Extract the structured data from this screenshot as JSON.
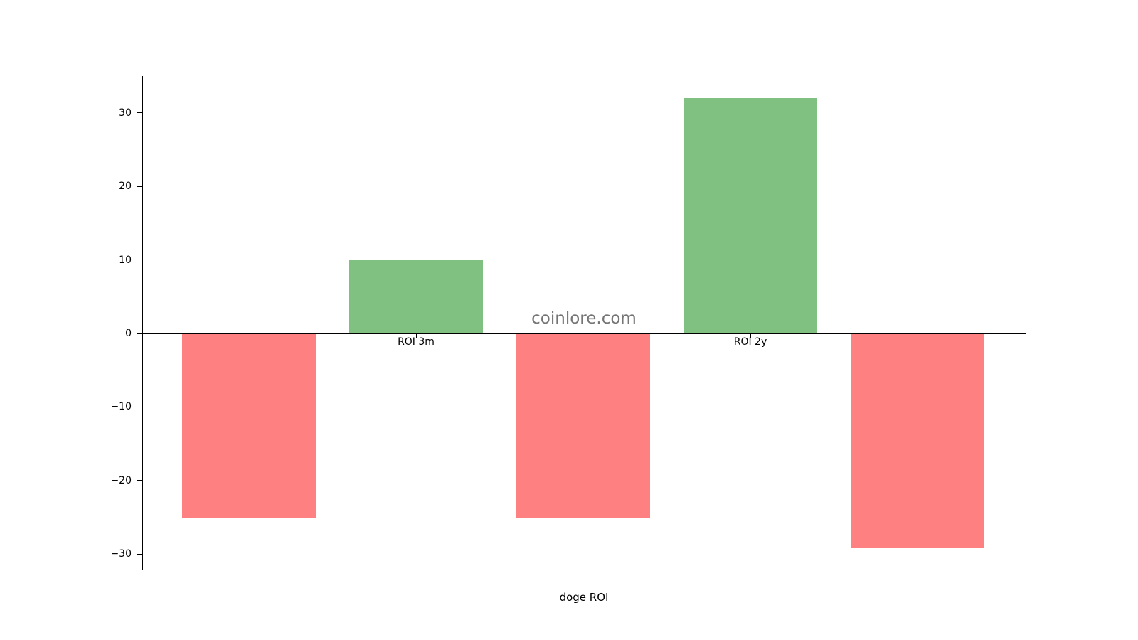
{
  "page": {
    "background_color": "#ffffff"
  },
  "watermark": {
    "text": "coinlore.com",
    "color": "#757575"
  },
  "chart_data": {
    "type": "bar",
    "title": "",
    "xlabel": "doge ROI",
    "ylabel": "",
    "categories": [
      "",
      "ROI 3m",
      "",
      "ROI 2y",
      ""
    ],
    "values": [
      -25,
      10,
      -25,
      32,
      -29
    ],
    "bar_colors": [
      "#ff8080",
      "#80c080",
      "#ff8080",
      "#80c080",
      "#ff8080"
    ],
    "positive_color": "#80c080",
    "negative_color": "#ff8080",
    "y_ticks": [
      30,
      20,
      10,
      0,
      -10,
      -20,
      -30
    ],
    "ylim": [
      -32.2,
      35
    ],
    "grid": false,
    "legend": null,
    "axis_color": "#000000",
    "tick_label_color": "#000000"
  }
}
